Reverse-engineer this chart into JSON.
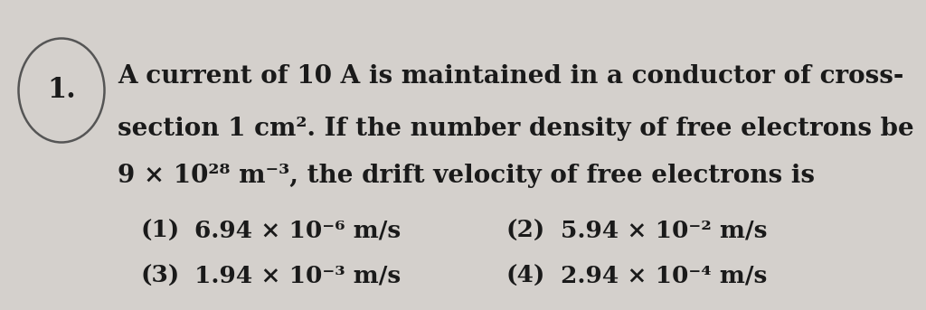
{
  "background_color": "#d4d0cc",
  "text_color": "#1a1a1a",
  "question_number": "1.",
  "line1": "A current of 10 A is maintained in a conductor of cross-",
  "line2": "section 1 cm². If the number density of free electrons be",
  "line3": "9 × 10²⁸ m⁻³, the drift velocity of free electrons is",
  "opt1_label": "(1)",
  "opt1_value": "6.94 × 10⁻⁶ m/s",
  "opt2_label": "(2)",
  "opt2_value": "5.94 × 10⁻² m/s",
  "opt3_label": "(3)",
  "opt3_value": "1.94 × 10⁻³ m/s",
  "opt4_label": "(4)",
  "opt4_value": "2.94 × 10⁻⁴ m/s",
  "font_size_main": 20,
  "font_size_options": 19
}
